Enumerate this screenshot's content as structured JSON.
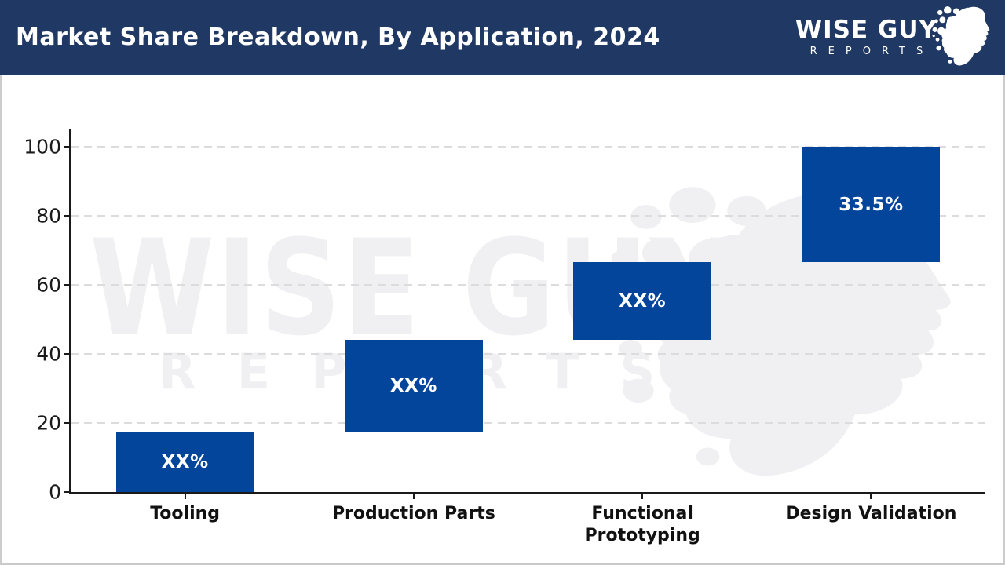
{
  "header": {
    "title": "Market Share Breakdown, By Application, 2024",
    "bg_color": "#203864",
    "logo": {
      "line1": "WISE GUY",
      "line2": "REPORTS"
    }
  },
  "watermark": {
    "line1": "WISE GUY",
    "line2": "REPORTS"
  },
  "chart_data": {
    "type": "bar",
    "subtype": "waterfall",
    "title": "Market Share Breakdown, By Application, 2024",
    "categories": [
      "Tooling",
      "Production Parts",
      "Functional Prototyping",
      "Design Validation"
    ],
    "category_display_lines": [
      [
        "Tooling"
      ],
      [
        "Production Parts"
      ],
      [
        "Functional",
        "Prototyping"
      ],
      [
        "Design Validation"
      ]
    ],
    "segments": [
      {
        "category": "Tooling",
        "start": 0,
        "end": 17.5,
        "value": 17.5,
        "value_label": "XX%"
      },
      {
        "category": "Production Parts",
        "start": 17.5,
        "end": 44,
        "value": 26.5,
        "value_label": "XX%"
      },
      {
        "category": "Functional Prototyping",
        "start": 44,
        "end": 66.5,
        "value": 22.5,
        "value_label": "XX%"
      },
      {
        "category": "Design Validation",
        "start": 66.5,
        "end": 100,
        "value": 33.5,
        "value_label": "33.5%"
      }
    ],
    "ylim": [
      0,
      105
    ],
    "yticks": [
      0,
      20,
      40,
      60,
      80,
      100
    ],
    "xlabel": "",
    "ylabel": "",
    "legend": null,
    "grid": {
      "horizontal": true,
      "style": "dashed",
      "color": "#dcdcdc"
    },
    "bar_color": "#04459c",
    "bar_label_color": "#ffffff",
    "axis_color": "#1a1a1a",
    "tick_label_color": "#1a1a1a"
  }
}
